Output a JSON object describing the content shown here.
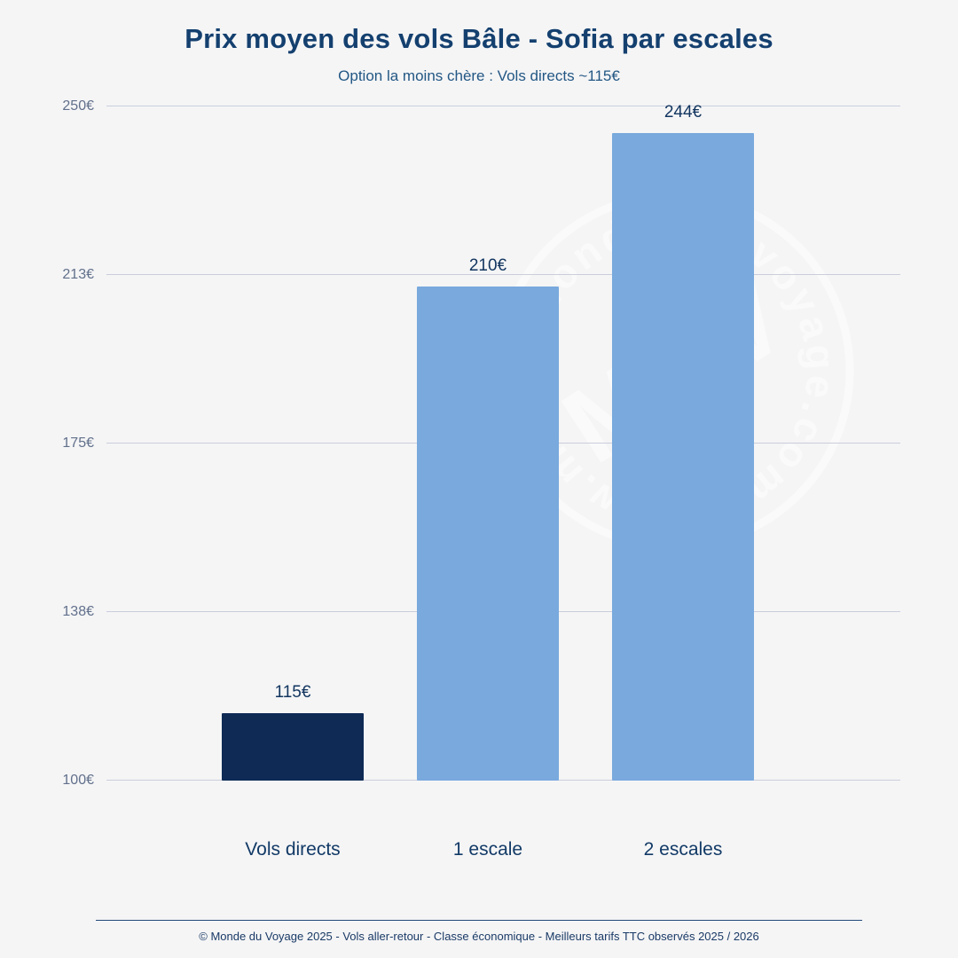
{
  "header": {
    "title": "Prix moyen des vols Bâle - Sofia par escales",
    "subtitle": "Option la moins chère : Vols directs ~115€"
  },
  "chart_data": {
    "type": "bar",
    "categories": [
      "Vols directs",
      "1 escale",
      "2 escales"
    ],
    "values": [
      115,
      210,
      244
    ],
    "value_labels": [
      "115€",
      "210€",
      "244€"
    ],
    "bar_colors": [
      "#0e2a55",
      "#79a9dd",
      "#79a9dd"
    ],
    "title": "Prix moyen des vols Bâle - Sofia par escales",
    "subtitle": "Option la moins chère : Vols directs ~115€",
    "xlabel": "",
    "ylabel": "",
    "ylim": [
      100,
      250
    ],
    "yticks": [
      100,
      137.5,
      175,
      212.5,
      250
    ],
    "ytick_labels": [
      "100€",
      "138€",
      "175€",
      "213€",
      "250€"
    ],
    "grid": true,
    "legend": "none"
  },
  "watermark": {
    "ring_text": "www.monde-du-voyage.com · www.monde-du-voyage.com · ",
    "center_text": "MDV"
  },
  "footer": {
    "text": "© Monde du Voyage 2025 - Vols aller-retour - Classe économique - Meilleurs tarifs TTC observés 2025 / 2026"
  },
  "colors": {
    "background": "#f5f5f6",
    "title": "#14406f",
    "subtitle": "#235784",
    "gridline": "#c9cedb",
    "ytick": "#61708b",
    "bar_dark": "#0e2a55",
    "bar_light": "#79a9dd",
    "value_label": "#12355f",
    "category_label": "#123a66",
    "footer": "#1a3a66"
  }
}
